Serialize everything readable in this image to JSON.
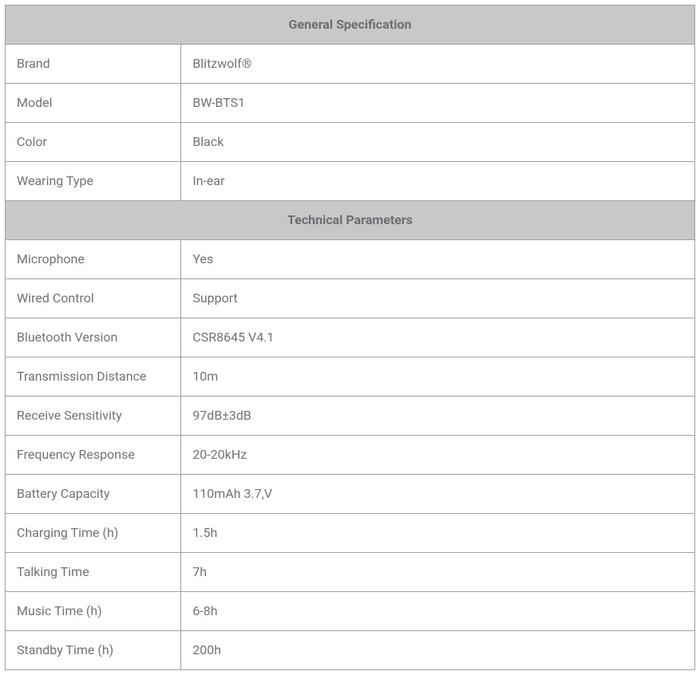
{
  "sections": [
    {
      "title": "General Specification",
      "rows": [
        {
          "label": "Brand",
          "value": "Blitzwolf®"
        },
        {
          "label": "Model",
          "value": "BW-BTS1"
        },
        {
          "label": "Color",
          "value": "Black"
        },
        {
          "label": "Wearing Type",
          "value": "In-ear"
        }
      ]
    },
    {
      "title": "Technical Parameters",
      "rows": [
        {
          "label": "Microphone",
          "value": "Yes"
        },
        {
          "label": "Wired Control",
          "value": "Support"
        },
        {
          "label": "Bluetooth Version",
          "value": "CSR8645 V4.1"
        },
        {
          "label": "Transmission Distance",
          "value": "10m"
        },
        {
          "label": "Receive Sensitivity",
          "value": "97dB±3dB"
        },
        {
          "label": "Frequency Response",
          "value": "20-20kHz"
        },
        {
          "label": "Battery Capacity",
          "value": "110mAh 3.7,V"
        },
        {
          "label": "Charging Time (h)",
          "value": "1.5h"
        },
        {
          "label": "Talking Time",
          "value": "7h"
        },
        {
          "label": "Music Time (h)",
          "value": "6-8h"
        },
        {
          "label": "Standby Time (h)",
          "value": "200h"
        }
      ]
    }
  ]
}
